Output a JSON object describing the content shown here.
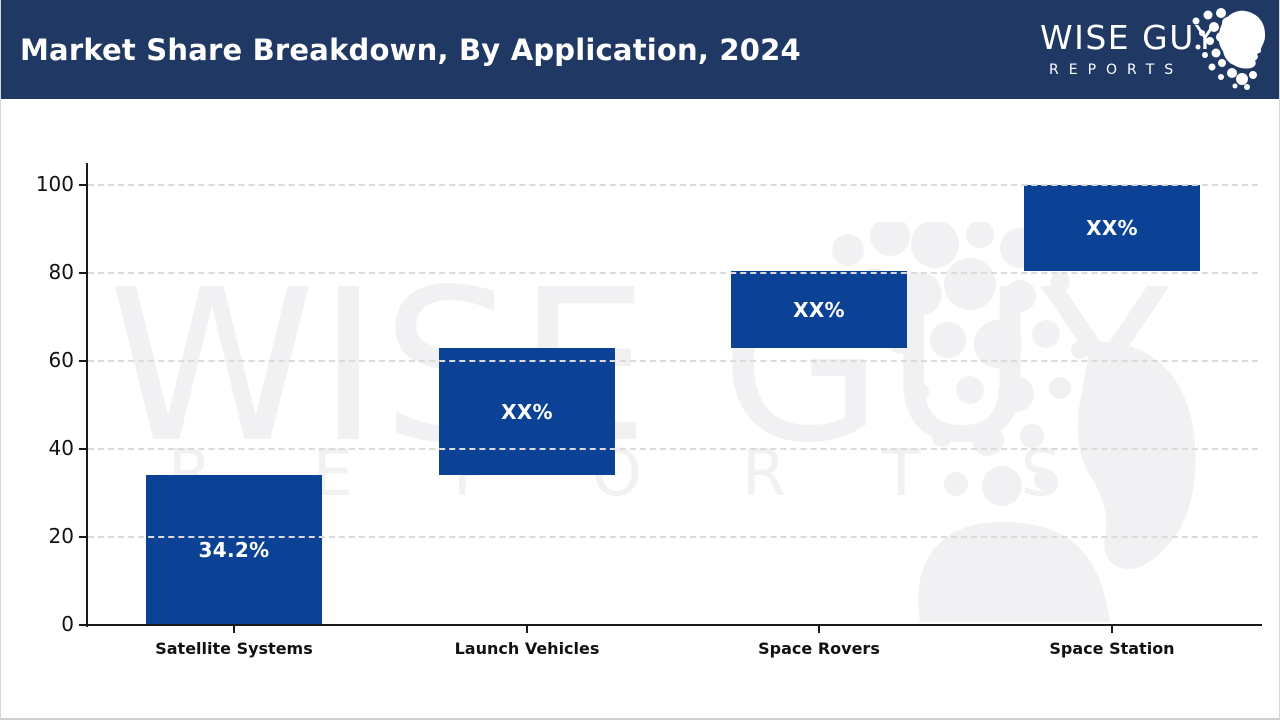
{
  "header": {
    "title": "Market Share Breakdown, By Application, 2024",
    "logo": {
      "line1": "WISE GUY",
      "line2": "REPORTS"
    }
  },
  "watermark": {
    "line1": "WISE GUY",
    "line2": "REPORTS"
  },
  "chart_data": {
    "type": "bar",
    "subtype": "floating-waterfall",
    "title": "Market Share Breakdown, By Application, 2024",
    "categories": [
      "Satellite Systems",
      "Launch Vehicles",
      "Space Rovers",
      "Space Station"
    ],
    "bars": [
      {
        "category": "Satellite Systems",
        "start": 0,
        "end": 34.2,
        "label": "34.2%"
      },
      {
        "category": "Launch Vehicles",
        "start": 34.2,
        "end": 63,
        "label": "XX%"
      },
      {
        "category": "Space Rovers",
        "start": 63,
        "end": 80.5,
        "label": "XX%"
      },
      {
        "category": "Space Station",
        "start": 80.5,
        "end": 100,
        "label": "XX%"
      }
    ],
    "yticks": [
      0,
      20,
      40,
      60,
      80,
      100
    ],
    "ylim": [
      0,
      105
    ],
    "xlabel": "",
    "ylabel": "",
    "grid": "horizontal-dashed",
    "legend": "none",
    "colors": {
      "bar": "#0b4296",
      "grid": "#dbdbdb",
      "axis": "#1a1a1a",
      "header_bg": "#203864",
      "bar_label_text": "#ffffff",
      "watermark": "#f1f1f4"
    }
  }
}
